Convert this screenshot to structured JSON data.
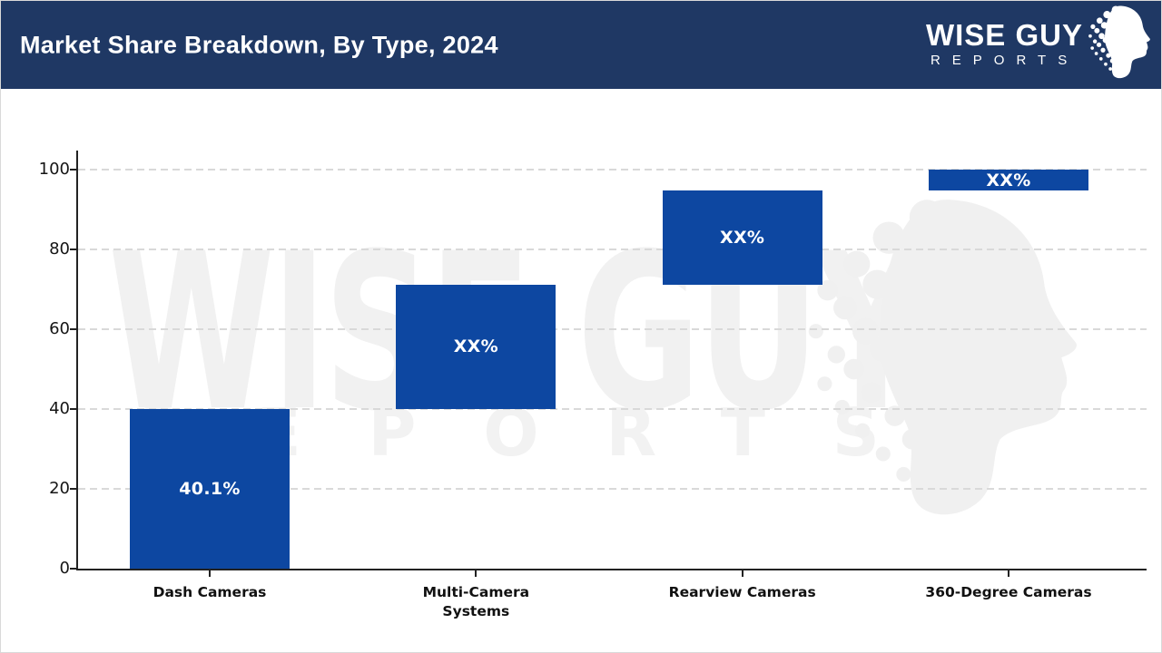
{
  "header": {
    "title": "Market Share Breakdown, By Type, 2024",
    "background_color": "#1f3864",
    "brand": {
      "line1": "WISE GUY",
      "line2": "REPORTS",
      "icon": "dotted-face-profile"
    }
  },
  "watermark": {
    "line1": "WISE GUY",
    "line2": "REPORTS",
    "icon": "dotted-face-profile"
  },
  "chart_data": {
    "type": "bar",
    "subtype": "floating-waterfall-percent",
    "title": "Market Share Breakdown, By Type, 2024",
    "categories": [
      "Dash Cameras",
      "Multi-Camera\nSystems",
      "Rearview Cameras",
      "360-Degree Cameras"
    ],
    "segments": [
      {
        "category": "Dash Cameras",
        "start": 0,
        "end": 40.1,
        "label": "40.1%"
      },
      {
        "category": "Multi-Camera\nSystems",
        "start": 40.1,
        "end": 71.2,
        "label": "XX%"
      },
      {
        "category": "Rearview Cameras",
        "start": 71.2,
        "end": 94.7,
        "label": "XX%"
      },
      {
        "category": "360-Degree Cameras",
        "start": 94.7,
        "end": 100,
        "label": "XX%"
      }
    ],
    "xlabel": "",
    "ylabel": "",
    "ylim": [
      0,
      100
    ],
    "yticks": [
      0,
      20,
      40,
      60,
      80,
      100
    ],
    "grid": "horizontal-dashed",
    "legend": "none",
    "bar_color": "#0d47a1",
    "bar_label_color": "#ffffff",
    "axis_color": "#222222",
    "gridline_color": "#d9d9d9"
  }
}
